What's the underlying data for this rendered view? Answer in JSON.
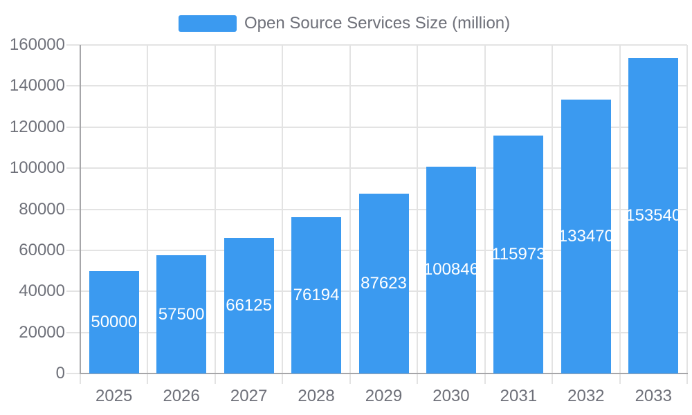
{
  "chart_data": {
    "type": "bar",
    "title": "",
    "legend": "Open Source Services Size (million)",
    "legend_position": "top-center",
    "categories": [
      "2025",
      "2026",
      "2027",
      "2028",
      "2029",
      "2030",
      "2031",
      "2032",
      "2033"
    ],
    "series": [
      {
        "name": "Open Source Services Size (million)",
        "values": [
          50000,
          57500,
          66125,
          76194,
          87623,
          100846,
          115973,
          133470,
          153540
        ]
      }
    ],
    "xlabel": "",
    "ylabel": "",
    "ylim": [
      0,
      160000
    ],
    "ytick_step": 20000,
    "yticks": [
      0,
      20000,
      40000,
      60000,
      80000,
      100000,
      120000,
      140000,
      160000
    ],
    "grid": "horizontal and vertical split lines on",
    "bar_label_position": "inside-center, white"
  },
  "colors": {
    "bar_fill": "#3b9af0",
    "axis_label_text": "#6e7079",
    "legend_text": "#6e7079",
    "split_line": "#e3e3e3",
    "axis_line": "#a6a6a9",
    "tick_line": "#e3e3e3",
    "bar_label_text": "#ffffff",
    "background": "#ffffff"
  }
}
